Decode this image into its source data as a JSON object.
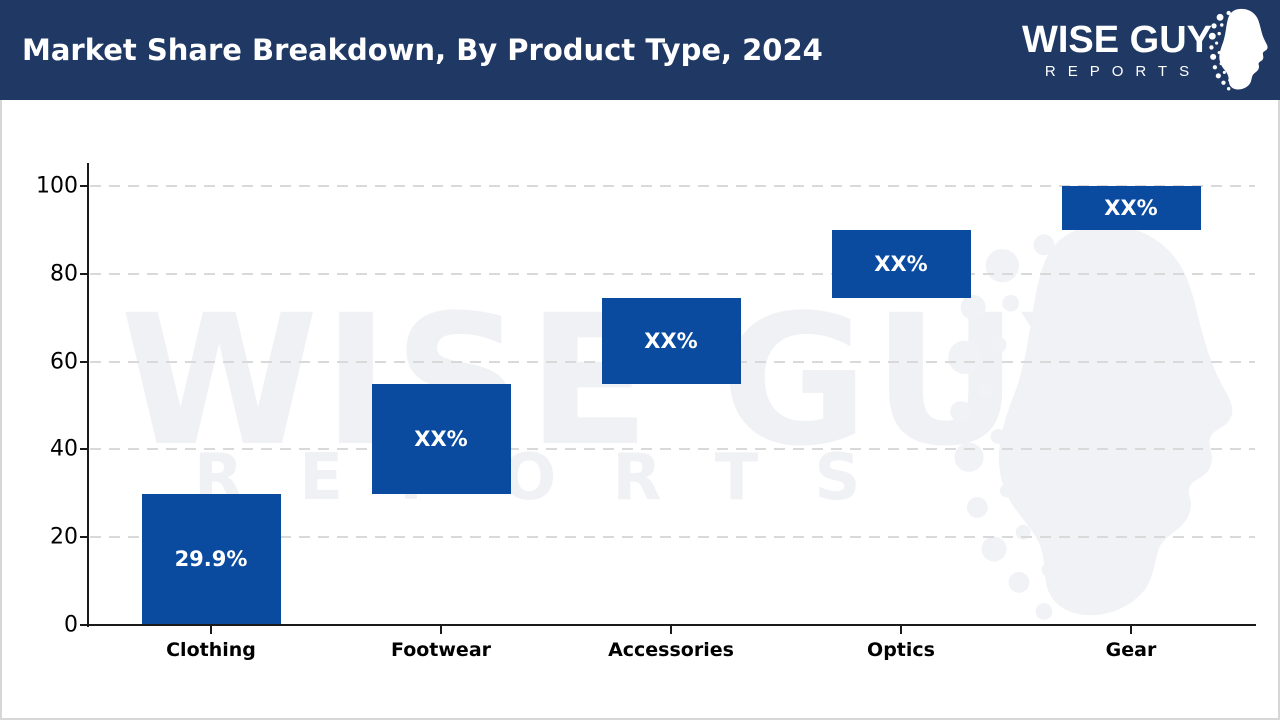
{
  "header": {
    "title": "Market Share Breakdown, By Product Type, 2024",
    "bg_color": "#1F3864",
    "logo": {
      "line1": "WISE GUY",
      "line2": "REPORTS"
    }
  },
  "watermark": {
    "line1": "WISE GUY",
    "line2": "REPORTS"
  },
  "chart_data": {
    "type": "bar",
    "subtype": "waterfall",
    "title": "Market Share Breakdown, By Product Type, 2024",
    "categories": [
      "Clothing",
      "Footwear",
      "Accessories",
      "Optics",
      "Gear"
    ],
    "segments": [
      {
        "category": "Clothing",
        "start": 0,
        "end": 29.9,
        "label": "29.9%"
      },
      {
        "category": "Footwear",
        "start": 29.9,
        "end": 55.0,
        "label": "XX%"
      },
      {
        "category": "Accessories",
        "start": 55.0,
        "end": 74.4,
        "label": "XX%"
      },
      {
        "category": "Optics",
        "start": 74.4,
        "end": 89.9,
        "label": "XX%"
      },
      {
        "category": "Gear",
        "start": 89.9,
        "end": 100,
        "label": "XX%"
      }
    ],
    "xlabel": "",
    "ylabel": "",
    "ylim": [
      0,
      105
    ],
    "yticks": [
      0,
      20,
      40,
      60,
      80,
      100
    ],
    "grid": "horizontal dashed",
    "legend": "none",
    "colors": {
      "bar": "#0A4BA0",
      "bar_label": "#FFFFFF",
      "grid": "#D9D9D9",
      "axis": "#1A1A1A",
      "watermark": "#F0F1F4",
      "header_bg": "#1F3864"
    }
  }
}
